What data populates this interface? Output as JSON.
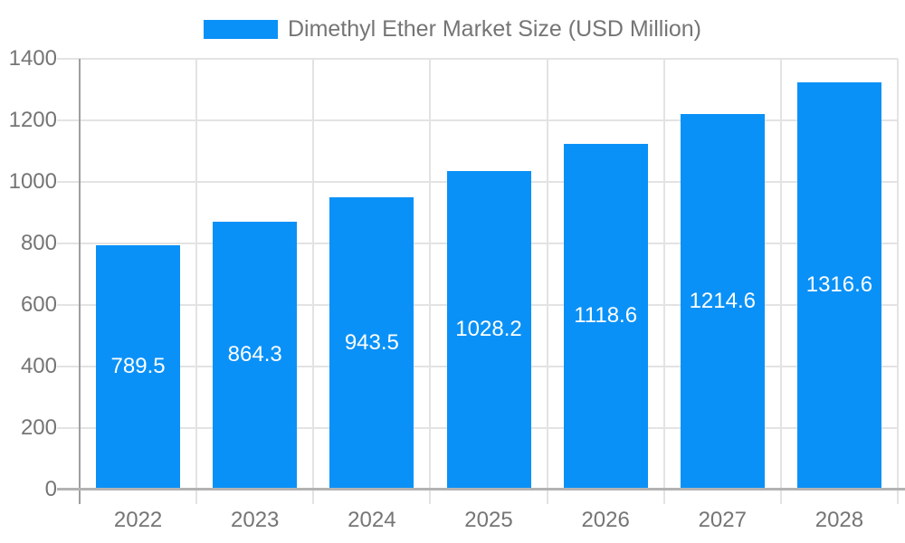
{
  "legend": {
    "label": "Dimethyl Ether Market Size (USD Million)"
  },
  "chart_data": {
    "type": "bar",
    "title": "",
    "categories": [
      "2022",
      "2023",
      "2024",
      "2025",
      "2026",
      "2027",
      "2028"
    ],
    "series": [
      {
        "name": "Dimethyl Ether Market Size (USD Million)",
        "values": [
          789.5,
          864.3,
          943.5,
          1028.2,
          1118.6,
          1214.6,
          1316.6
        ]
      }
    ],
    "value_labels": [
      789.5,
      864.3,
      943.5,
      1028.2,
      1118.6,
      1214.6,
      1316.6
    ],
    "value_label_position": "inside-center",
    "xlabel": "",
    "ylabel": "",
    "ylim": [
      0,
      1400
    ],
    "yticks": [
      0,
      200,
      400,
      600,
      800,
      1000,
      1200,
      1400
    ],
    "grid": true,
    "legend_position": "top-center",
    "colors": {
      "bar": "#0a91f7",
      "grid": "#e3e3e3",
      "y_axis": "#9e9e9e",
      "x_axis": "#b3b3b3",
      "tick_text": "#757575",
      "value_text": "#ffffff",
      "background": "#ffffff"
    }
  }
}
